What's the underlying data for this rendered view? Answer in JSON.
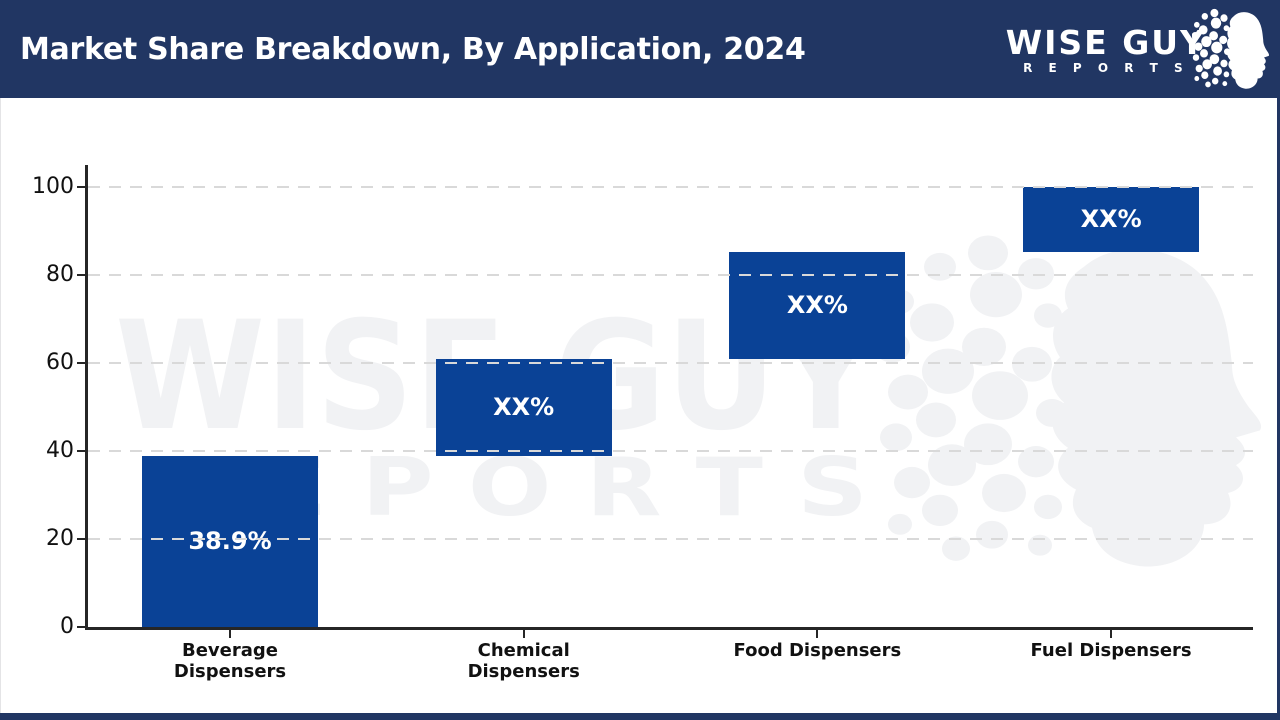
{
  "header": {
    "title": "Market Share Breakdown, By Application, 2024",
    "logo": {
      "wordmark": "WISE GUY",
      "subtext": "R E P O R T S"
    }
  },
  "watermark": {
    "wordmark": "WISE GUY",
    "subtext": "R E P O R T S"
  },
  "chart_data": {
    "type": "bar",
    "variant": "floating-segment-waterfall",
    "title": "Market Share Breakdown, By Application, 2024",
    "categories": [
      "Beverage Dispensers",
      "Chemical Dispensers",
      "Food Dispensers",
      "Fuel Dispensers"
    ],
    "category_lines": [
      [
        "Beverage",
        "Dispensers"
      ],
      [
        "Chemical",
        "Dispensers"
      ],
      [
        "Food Dispensers"
      ],
      [
        "Fuel Dispensers"
      ]
    ],
    "segments": [
      {
        "category": "Beverage Dispensers",
        "start": 0,
        "end": 38.9,
        "label": "38.9%"
      },
      {
        "category": "Chemical Dispensers",
        "start": 38.9,
        "end": 61.0,
        "label": "XX%"
      },
      {
        "category": "Food Dispensers",
        "start": 61.0,
        "end": 85.3,
        "label": "XX%"
      },
      {
        "category": "Fuel Dispensers",
        "start": 85.3,
        "end": 100,
        "label": "XX%"
      }
    ],
    "yticks": [
      0,
      20,
      40,
      60,
      80,
      100
    ],
    "ylim": [
      0,
      105
    ],
    "xlabel": "",
    "ylabel": "",
    "grid": "horizontal-dashed",
    "legend": "none"
  },
  "colors": {
    "header_bg": "#213663",
    "bar_fill": "#0a4296",
    "bar_label": "#ffffff",
    "grid_line": "#d9d9d9",
    "axis_line": "#262626",
    "tick_label": "#111111",
    "watermark": "#f1f2f4",
    "page_bg": "#ffffff"
  }
}
